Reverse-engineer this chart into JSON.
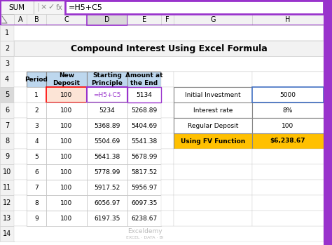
{
  "title": "Compound Interest Using Excel Formula",
  "formula_bar_text": "=H5+C5",
  "formula_bar_label": "SUM",
  "col_headers": [
    "A",
    "B",
    "C",
    "D",
    "E",
    "F",
    "G",
    "H"
  ],
  "row_headers": [
    "1",
    "2",
    "3",
    "4",
    "5",
    "6",
    "7",
    "8",
    "9",
    "10",
    "11",
    "12",
    "13",
    "14"
  ],
  "main_table_headers": [
    "Period",
    "New\nDeposit",
    "Starting\nPrinciple",
    "Amount at\nthe End"
  ],
  "main_table_data": [
    [
      "1",
      "100",
      "=H5+C5",
      "5134"
    ],
    [
      "2",
      "100",
      "5234",
      "5268.89"
    ],
    [
      "3",
      "100",
      "5368.89",
      "5404.69"
    ],
    [
      "4",
      "100",
      "5504.69",
      "5541.38"
    ],
    [
      "5",
      "100",
      "5641.38",
      "5678.99"
    ],
    [
      "6",
      "100",
      "5778.99",
      "5817.52"
    ],
    [
      "7",
      "100",
      "5917.52",
      "5956.97"
    ],
    [
      "8",
      "100",
      "6056.97",
      "6097.35"
    ],
    [
      "9",
      "100",
      "6197.35",
      "6238.67"
    ]
  ],
  "side_table_data": [
    [
      "Initial Investment",
      "5000"
    ],
    [
      "Interest rate",
      "8%"
    ],
    [
      "Regular Deposit",
      "100"
    ],
    [
      "Using FV Function",
      "$6,238.67"
    ]
  ],
  "bg_color": "#ffffff",
  "col_header_bg": "#f2f2f2",
  "col_header_selected_bg": "#d9d9d9",
  "row_header_bg": "#f2f2f2",
  "row_header_selected_bg": "#d9d9d9",
  "table_header_bg": "#bdd7ee",
  "formula_bar_border": "#9933cc",
  "purple_right_bar": "#9933cc",
  "cell_C5_bg": "#fce4d6",
  "cell_C5_border": "#ff0000",
  "cell_D5_border": "#9933cc",
  "fv_row_color": "#ffc000",
  "grid_color": "#d0d0d0",
  "title_bg": "#f2f2f2",
  "watermark_color": "#bbbbbb",
  "side_border_color": "#4472c4",
  "normal_border": "#c0c0c0"
}
